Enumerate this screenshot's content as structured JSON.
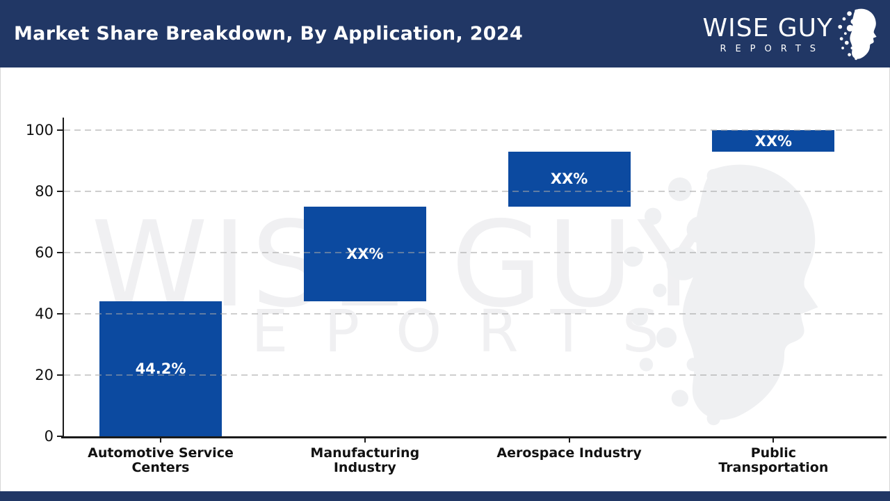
{
  "header": {
    "title": "Market Share Breakdown, By Application, 2024",
    "logo": {
      "line1": "WISE GUY",
      "line2": "REPORTS"
    }
  },
  "watermark": {
    "line1": "WISE GUY",
    "line2": "REPORTS"
  },
  "chart_data": {
    "type": "bar",
    "subtype": "waterfall",
    "title": "Market Share Breakdown, By Application, 2024",
    "categories": [
      [
        "Automotive Service",
        "Centers"
      ],
      [
        "Manufacturing",
        "Industry"
      ],
      [
        "Aerospace Industry"
      ],
      [
        "Public",
        "Transportation"
      ]
    ],
    "segments": [
      {
        "start": 0,
        "end": 44.2,
        "label": "44.2%"
      },
      {
        "start": 44.2,
        "end": 75.1,
        "label": "XX%"
      },
      {
        "start": 75.1,
        "end": 92.9,
        "label": "XX%"
      },
      {
        "start": 92.9,
        "end": 100,
        "label": "XX%"
      }
    ],
    "yticks": [
      0,
      20,
      40,
      60,
      80,
      100
    ],
    "ylim": [
      0,
      104
    ],
    "grid": "dashed-horizontal",
    "legend": "none",
    "bar_color": "#0c4aa0",
    "grid_color": "#d9d9d9",
    "axis_color": "#1a1a1a"
  },
  "colors": {
    "header_bg": "#213765",
    "footer_bg": "#213765",
    "bar_blue": "#0c4aa0",
    "watermark_gray": "#f0f0f2"
  }
}
